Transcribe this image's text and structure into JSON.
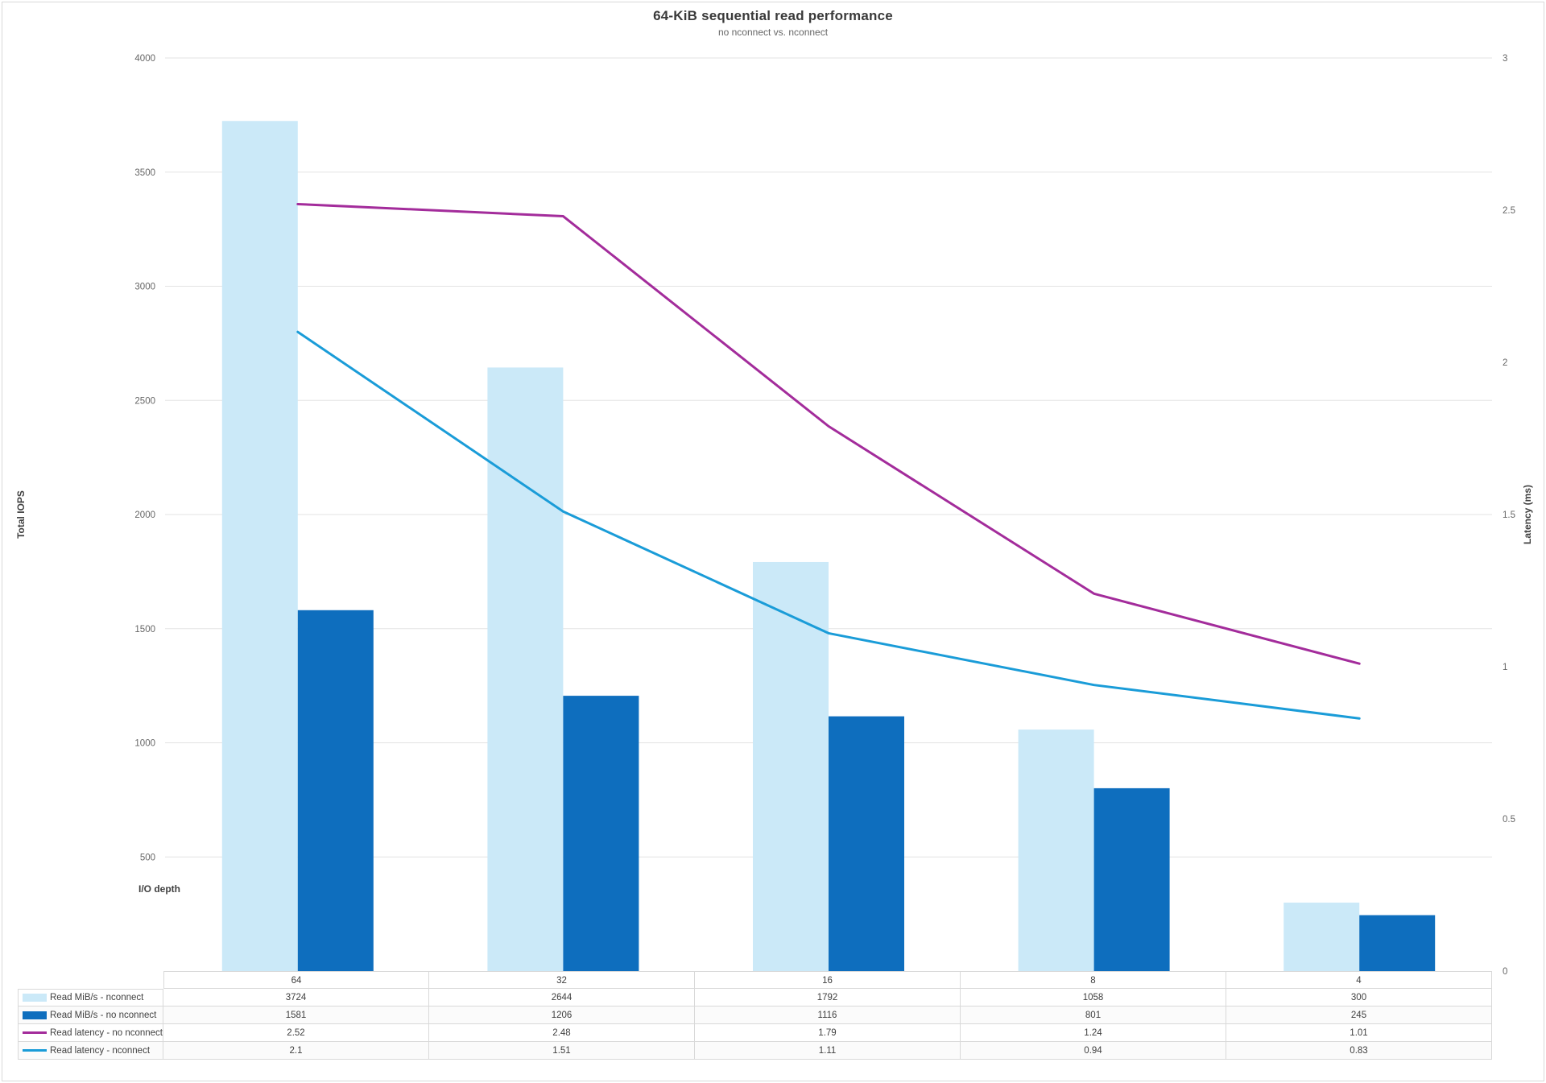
{
  "header": {
    "title": "64-KiB sequential read performance",
    "subtitle": "no nconnect vs. nconnect"
  },
  "chart_data": {
    "type": "combo-bar-line",
    "title": "64-KiB sequential read performance",
    "subtitle": "no nconnect vs. nconnect",
    "categories": [
      "64",
      "32",
      "16",
      "8",
      "4"
    ],
    "x_axis": {
      "title": "I/O depth"
    },
    "left_axis": {
      "title": "Total IOPS",
      "range": [
        0,
        4000
      ],
      "tick_labels": [
        "500",
        "1000",
        "1500",
        "2000",
        "2500",
        "3000",
        "3500",
        "4000"
      ]
    },
    "right_axis": {
      "title": "Latency (ms)",
      "range": [
        0,
        3
      ],
      "tick_labels": [
        "0",
        "0.5",
        "1",
        "1.5",
        "2",
        "2.5",
        "3"
      ]
    },
    "grid": "horizontal-only",
    "legend_position": "table-left",
    "colors": {
      "bar_nconnect": "#CBE9F8",
      "bar_no_nconnect": "#0E6EBE",
      "line_no_nconnect": "#A32C9B",
      "line_nconnect": "#1A9CD8"
    },
    "series": [
      {
        "name": "Read MiB/s - nconnect",
        "type": "bar",
        "axis": "left",
        "color": "#CBE9F8",
        "values": [
          3724,
          2644,
          1792,
          1058,
          300
        ]
      },
      {
        "name": "Read MiB/s - no nconnect",
        "type": "bar",
        "axis": "left",
        "color": "#0E6EBE",
        "values": [
          1581,
          1206,
          1116,
          801,
          245
        ]
      },
      {
        "name": "Read latency - no nconnect",
        "type": "line",
        "axis": "right",
        "color": "#A32C9B",
        "values": [
          2.52,
          2.48,
          1.79,
          1.24,
          1.01
        ]
      },
      {
        "name": "Read latency - nconnect",
        "type": "line",
        "axis": "right",
        "color": "#1A9CD8",
        "values": [
          2.1,
          1.51,
          1.11,
          0.94,
          0.83
        ]
      }
    ]
  }
}
